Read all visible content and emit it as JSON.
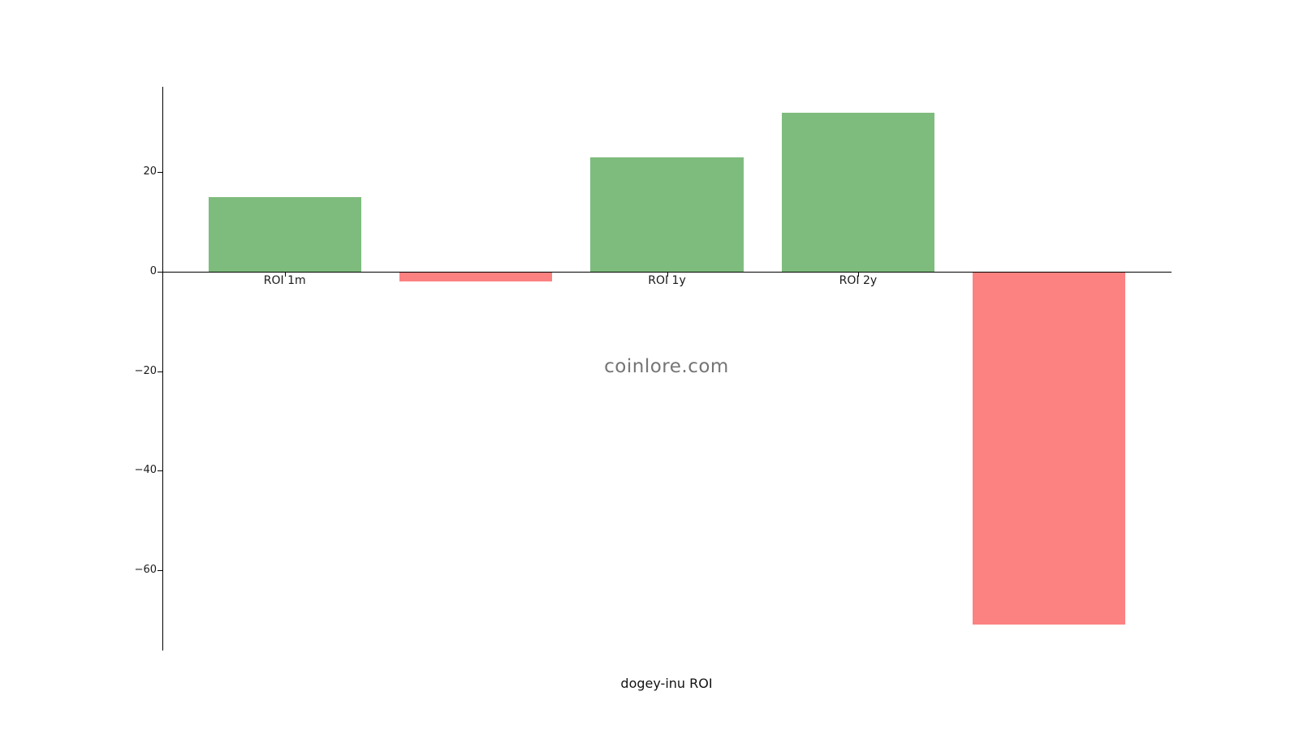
{
  "page": {
    "background": "#ffffff"
  },
  "watermark": {
    "text": "coinlore.com",
    "color": "#757575"
  },
  "chart_data": {
    "type": "bar",
    "title": "dogey-inu ROI",
    "xlabel": "dogey-inu ROI",
    "ylabel": "",
    "categories": [
      "ROI 1m",
      "",
      "ROI 1y",
      "ROI 2y",
      ""
    ],
    "values": [
      15,
      -2,
      23,
      32,
      -71
    ],
    "unit": "percent",
    "positive_color": "#7ebc7e",
    "negative_color": "#fc8181",
    "axis_color": "#000000",
    "tick_text_color": "#1a1a1a",
    "yticks": [
      {
        "v": 20,
        "label": "20"
      },
      {
        "v": 0,
        "label": "0"
      },
      {
        "v": -20,
        "label": "−20"
      },
      {
        "v": -40,
        "label": "−40"
      },
      {
        "v": -60,
        "label": "−60"
      }
    ],
    "ylim": [
      -76.2,
      37.2
    ],
    "xlim": [
      -0.64,
      4.64
    ],
    "bar_width_fraction": 0.8,
    "grid": false,
    "legend": "none"
  }
}
